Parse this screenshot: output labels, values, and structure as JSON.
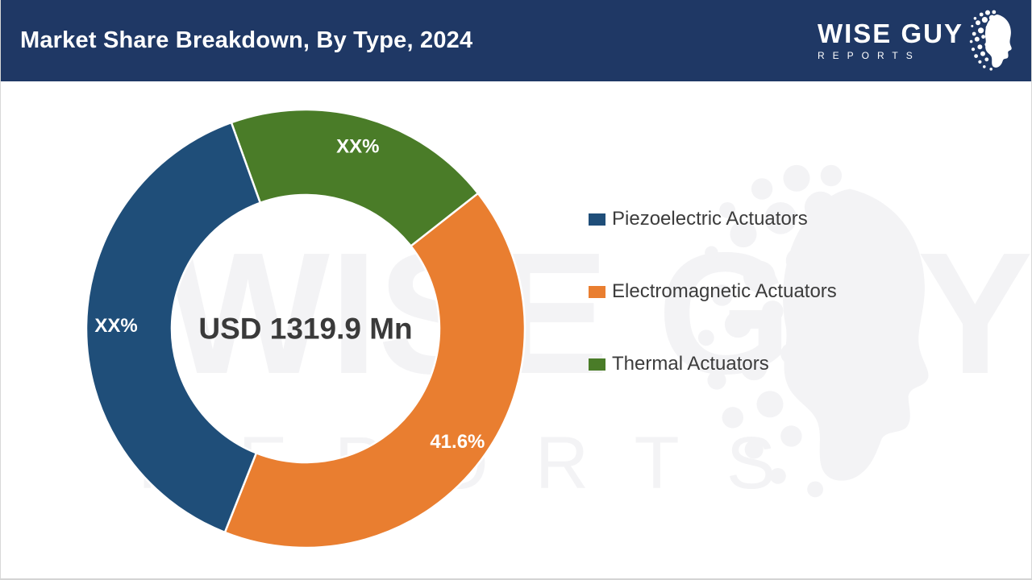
{
  "header": {
    "title": "Market Share Breakdown, By Type, 2024",
    "logo": {
      "name": "WISE GUY",
      "subtitle": "REPORTS"
    }
  },
  "watermark": {
    "line1": "WISE GUY",
    "line2": "REPORTS"
  },
  "chart_data": {
    "type": "pie",
    "subtype": "donut",
    "title": "Market Share Breakdown, By Type, 2024",
    "center_label": "USD 1319.9 Mn",
    "start_angle_deg": 248.4,
    "direction": "clockwise",
    "inner_radius_ratio": 0.61,
    "segments": [
      {
        "name": "Piezoelectric Actuators",
        "value_pct": 38.5,
        "label": "XX%",
        "color": "#1F4E79"
      },
      {
        "name": "Thermal Actuators",
        "value_pct": 19.9,
        "label": "XX%",
        "color": "#4A7C28"
      },
      {
        "name": "Electromagnetic Actuators",
        "value_pct": 41.6,
        "label": "41.6%",
        "color": "#E97E30"
      }
    ],
    "legend": [
      {
        "label": "Piezoelectric Actuators",
        "color": "#1F4E79"
      },
      {
        "label": "Electromagnetic Actuators",
        "color": "#E97E30"
      },
      {
        "label": "Thermal Actuators",
        "color": "#4A7C28"
      }
    ],
    "legend_position": "right"
  }
}
